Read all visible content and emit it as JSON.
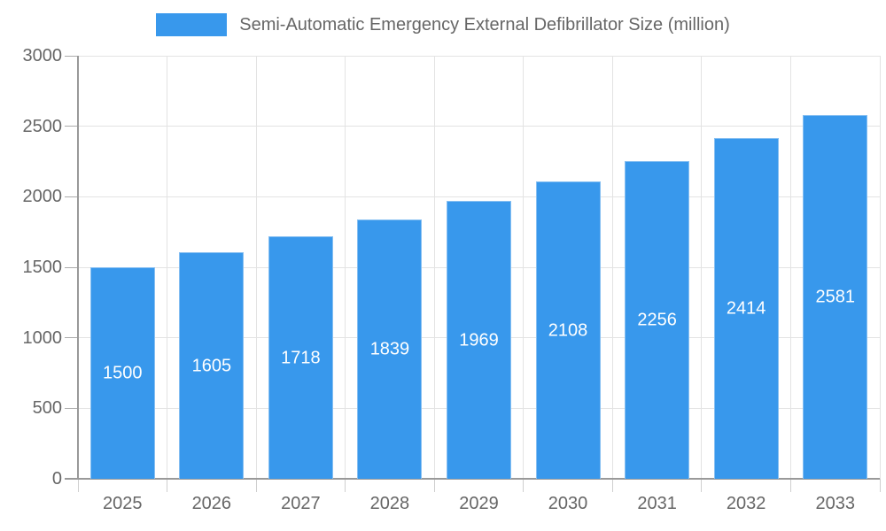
{
  "chart_data": {
    "type": "bar",
    "title": "Semi-Automatic Emergency External Defibrillator Size (million)",
    "categories": [
      "2025",
      "2026",
      "2027",
      "2028",
      "2029",
      "2030",
      "2031",
      "2032",
      "2033"
    ],
    "values": [
      1500,
      1605,
      1718,
      1839,
      1969,
      2108,
      2256,
      2414,
      2581
    ],
    "xlabel": "",
    "ylabel": "",
    "ylim": [
      0,
      3000
    ],
    "yticks": [
      0,
      500,
      1000,
      1500,
      2000,
      2500,
      3000
    ],
    "grid": true,
    "legend_position": "top",
    "bar_labels_visible": true,
    "colors": {
      "bar_fill": "#3898EC",
      "bar_border": "#86BFF2",
      "grid_line": "#E3E3E3",
      "axis_line": "#999999",
      "y_tick_line": "#ABABAB",
      "x_tick_line": "#CFCFCF",
      "axis_text": "#666666",
      "bar_label_text": "#FFFFFF",
      "background": "#FFFFFF"
    }
  }
}
